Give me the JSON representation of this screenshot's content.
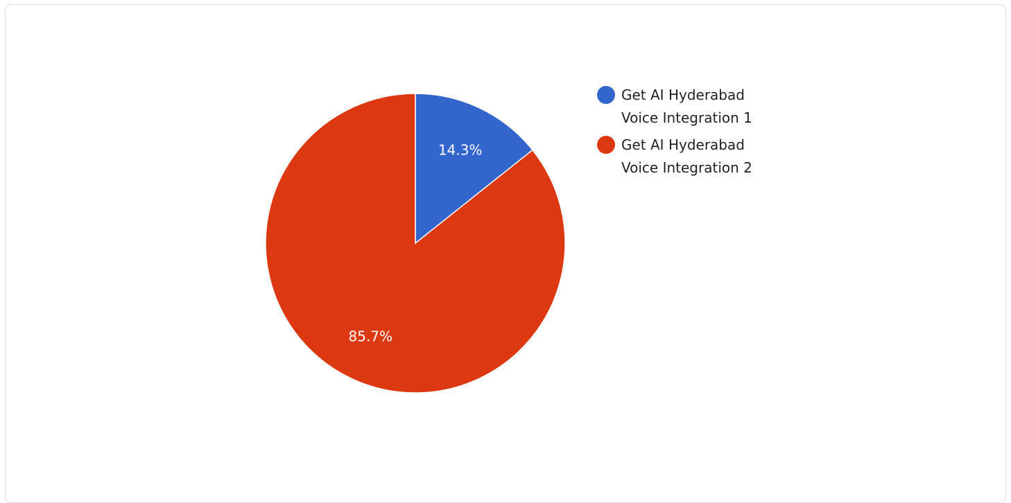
{
  "chart_data": {
    "type": "pie",
    "title": "",
    "series": [
      {
        "name": "",
        "values": [
          14.3,
          85.7
        ],
        "labels": [
          "Get AI Hyderabad Voice Integration 1",
          "Get AI Hyderabad Voice Integration 2"
        ],
        "display_labels": [
          "14.3%",
          "85.7%"
        ],
        "colors": [
          "#3366cc",
          "#dc3912"
        ]
      }
    ],
    "legend_position": "right",
    "start_angle": "12 o'clock",
    "direction": "clockwise"
  }
}
